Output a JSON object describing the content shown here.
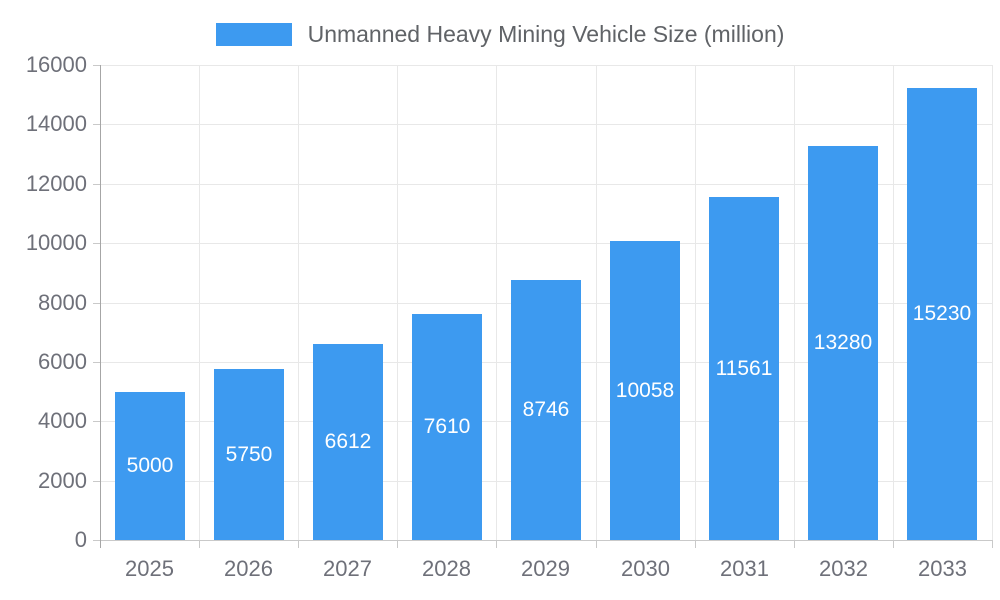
{
  "chart_data": {
    "type": "bar",
    "title": "Unmanned Heavy Mining Vehicle Size (million)",
    "legend": {
      "label": "Unmanned Heavy Mining Vehicle Size (million)",
      "position": "top"
    },
    "categories": [
      "2025",
      "2026",
      "2027",
      "2028",
      "2029",
      "2030",
      "2031",
      "2032",
      "2033"
    ],
    "values": [
      5000,
      5750,
      6612,
      7610,
      8746,
      10058,
      11561,
      13280,
      15230
    ],
    "value_labels": [
      "5000",
      "5750",
      "6612",
      "7610",
      "8746",
      "10058",
      "11561",
      "13280",
      "15230"
    ],
    "xlabel": "",
    "ylabel": "",
    "ylim": [
      0,
      16000
    ],
    "ytick_step": 2000,
    "yticks": [
      0,
      2000,
      4000,
      6000,
      8000,
      10000,
      12000,
      14000,
      16000
    ],
    "ytick_labels": [
      "0",
      "2000",
      "4000",
      "6000",
      "8000",
      "10000",
      "12000",
      "14000",
      "16000"
    ],
    "grid": true,
    "colors": {
      "bar": "#3D9AF0",
      "grid": "#E8E8E8",
      "y_axis": "#A6A6A6",
      "baseline": "#C9C9C9",
      "tick": "#C9C9C9",
      "axis_label": "#6E7079",
      "legend_text": "#606367",
      "value_label": "#FFFFFF",
      "background": "#FFFFFF"
    }
  }
}
